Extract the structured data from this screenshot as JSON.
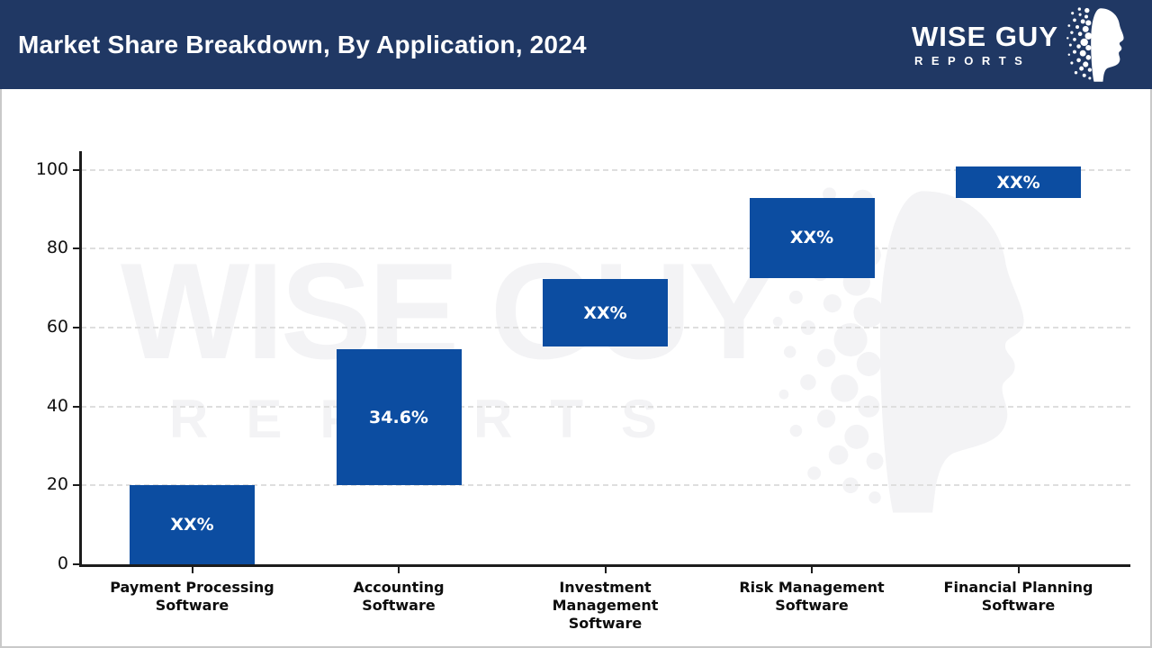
{
  "header": {
    "title": "Market Share Breakdown, By Application, 2024",
    "bg_color": "#203864",
    "logo": {
      "line1": "WISE GUY",
      "line2": "REPORTS",
      "icon": "dotted-head-profile-icon"
    }
  },
  "watermark": {
    "line1": "WISE GUY",
    "line2": "REPORTS",
    "icon": "dotted-head-profile-icon",
    "color": "#f3f3f5"
  },
  "chart_data": {
    "type": "bar",
    "subtype": "waterfall",
    "title": "Market Share Breakdown, By Application, 2024",
    "categories": [
      "Payment Processing Software",
      "Accounting Software",
      "Investment Management Software",
      "Risk Management Software",
      "Financial Planning Software"
    ],
    "category_lines": [
      [
        "Payment Processing",
        "Software"
      ],
      [
        "Accounting",
        "Software"
      ],
      [
        "Investment",
        "Management",
        "Software"
      ],
      [
        "Risk Management",
        "Software"
      ],
      [
        "Financial Planning",
        "Software"
      ]
    ],
    "segments": [
      {
        "category": "Payment Processing Software",
        "start": 0,
        "end": 20,
        "label": "XX%"
      },
      {
        "category": "Accounting Software",
        "start": 20,
        "end": 54.6,
        "label": "34.6%"
      },
      {
        "category": "Investment Management Software",
        "start": 55.1,
        "end": 72.4,
        "label": "XX%"
      },
      {
        "category": "Risk Management Software",
        "start": 72.6,
        "end": 92.9,
        "label": "XX%"
      },
      {
        "category": "Financial Planning Software",
        "start": 92.8,
        "end": 100.8,
        "label": "XX%"
      }
    ],
    "y_ticks": [
      0,
      20,
      40,
      60,
      80,
      100
    ],
    "y_tick_labels": [
      "0",
      "20",
      "40",
      "60",
      "80",
      "100"
    ],
    "ylim": [
      0,
      104.5
    ],
    "xlabel": "",
    "ylabel": "",
    "legend_position": "none",
    "grid": "horizontal-dashed",
    "bar_color": "#0c4da1",
    "value_label_color": "#ffffff",
    "gridline_color": "#dedede",
    "axis_color": "#1c1c1c"
  }
}
